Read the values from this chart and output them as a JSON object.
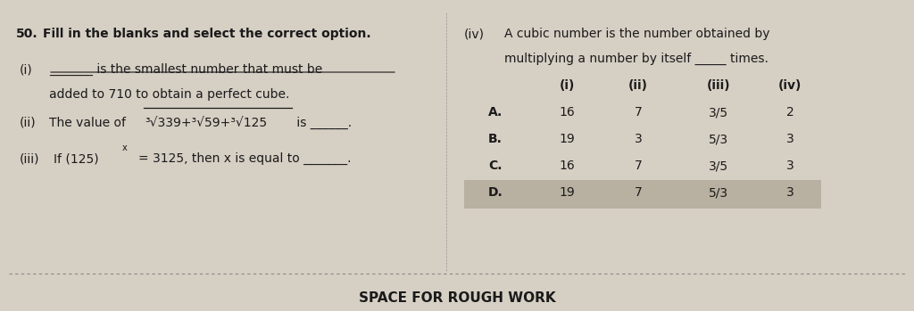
{
  "background_color": "#d6cfc4",
  "question_number": "50.",
  "main_instruction": "Fill in the blanks and select the correct option.",
  "sub_questions": [
    {
      "label": "(i)",
      "text_parts": [
        "_______ is the smallest number that must be\nadded to 710 to obtain a perfect cube."
      ]
    },
    {
      "label": "(ii)",
      "text": "The value of ³√339+³√59+³√125  is ______."
    },
    {
      "label": "(iii)",
      "text": "If (125)ˣ = 3125, then x is equal to _______."
    }
  ],
  "iv_question": {
    "label": "(iv)",
    "text": "A cubic number is the number obtained by\nmultiplying a number by itself _____ times."
  },
  "table_headers": [
    "",
    "(i)",
    "(ii)",
    "(iii)",
    "(iv)"
  ],
  "table_rows": [
    [
      "A.",
      "16",
      "7",
      "3/5",
      "2"
    ],
    [
      "B.",
      "19",
      "3",
      "5/3",
      "3"
    ],
    [
      "C.",
      "16",
      "7",
      "3/5",
      "3"
    ],
    [
      "D.",
      "19",
      "7",
      "5/3",
      "3"
    ]
  ],
  "highlighted_row": 3,
  "footer_text": "SPACE FOR ROUGH WORK",
  "divider_color": "#888888",
  "text_color": "#1a1a1a",
  "highlight_color": "#c0b8a8",
  "font_size_main": 10,
  "font_size_table": 10
}
